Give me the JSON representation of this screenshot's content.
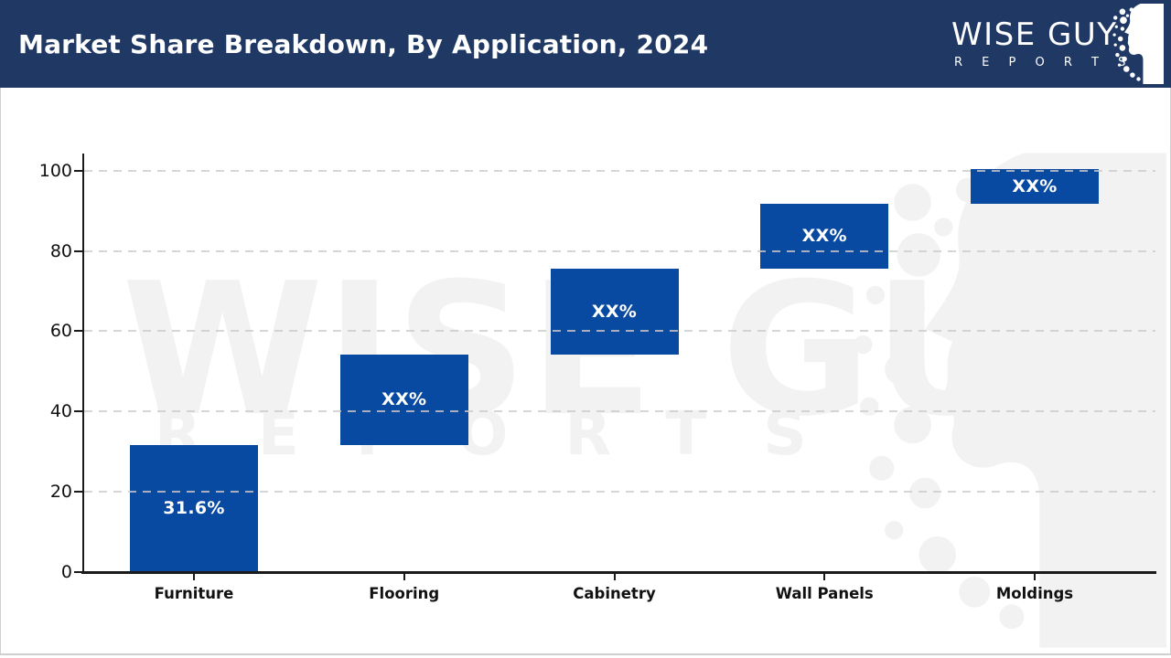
{
  "header": {
    "title": "Market Share Breakdown, By Application, 2024",
    "logo": {
      "line1": "WISE GUY",
      "line2": "R E P O R T S"
    }
  },
  "watermark": {
    "line1": "WISE GUY",
    "line2": "REPORTS"
  },
  "colors": {
    "header_bg": "#1f3864",
    "bar": "#0849a2",
    "bar_label": "#ffffff",
    "grid": "#cbcbcb",
    "axis": "#1a1a1a",
    "watermark": "#f2f2f2"
  },
  "chart_data": {
    "type": "bar",
    "subtype": "waterfall",
    "title": "Market Share Breakdown, By Application, 2024",
    "categories": [
      "Furniture",
      "Flooring",
      "Cabinetry",
      "Wall Panels",
      "Moldings"
    ],
    "segments": [
      {
        "category": "Furniture",
        "start": 0,
        "end": 31.6,
        "label": "31.6%"
      },
      {
        "category": "Flooring",
        "start": 31.6,
        "end": 54.2,
        "label": "XX%"
      },
      {
        "category": "Cabinetry",
        "start": 54.2,
        "end": 75.6,
        "label": "XX%"
      },
      {
        "category": "Wall Panels",
        "start": 75.6,
        "end": 91.8,
        "label": "XX%"
      },
      {
        "category": "Moldings",
        "start": 91.8,
        "end": 100.3,
        "label": "XX%"
      }
    ],
    "cumulative_total": 100,
    "units": "percent",
    "xlabel": "",
    "ylabel": "",
    "yticks": [
      0,
      20,
      40,
      60,
      80,
      100
    ],
    "ylim": [
      0,
      104
    ],
    "grid": "horizontal-dashed",
    "legend": "none"
  }
}
